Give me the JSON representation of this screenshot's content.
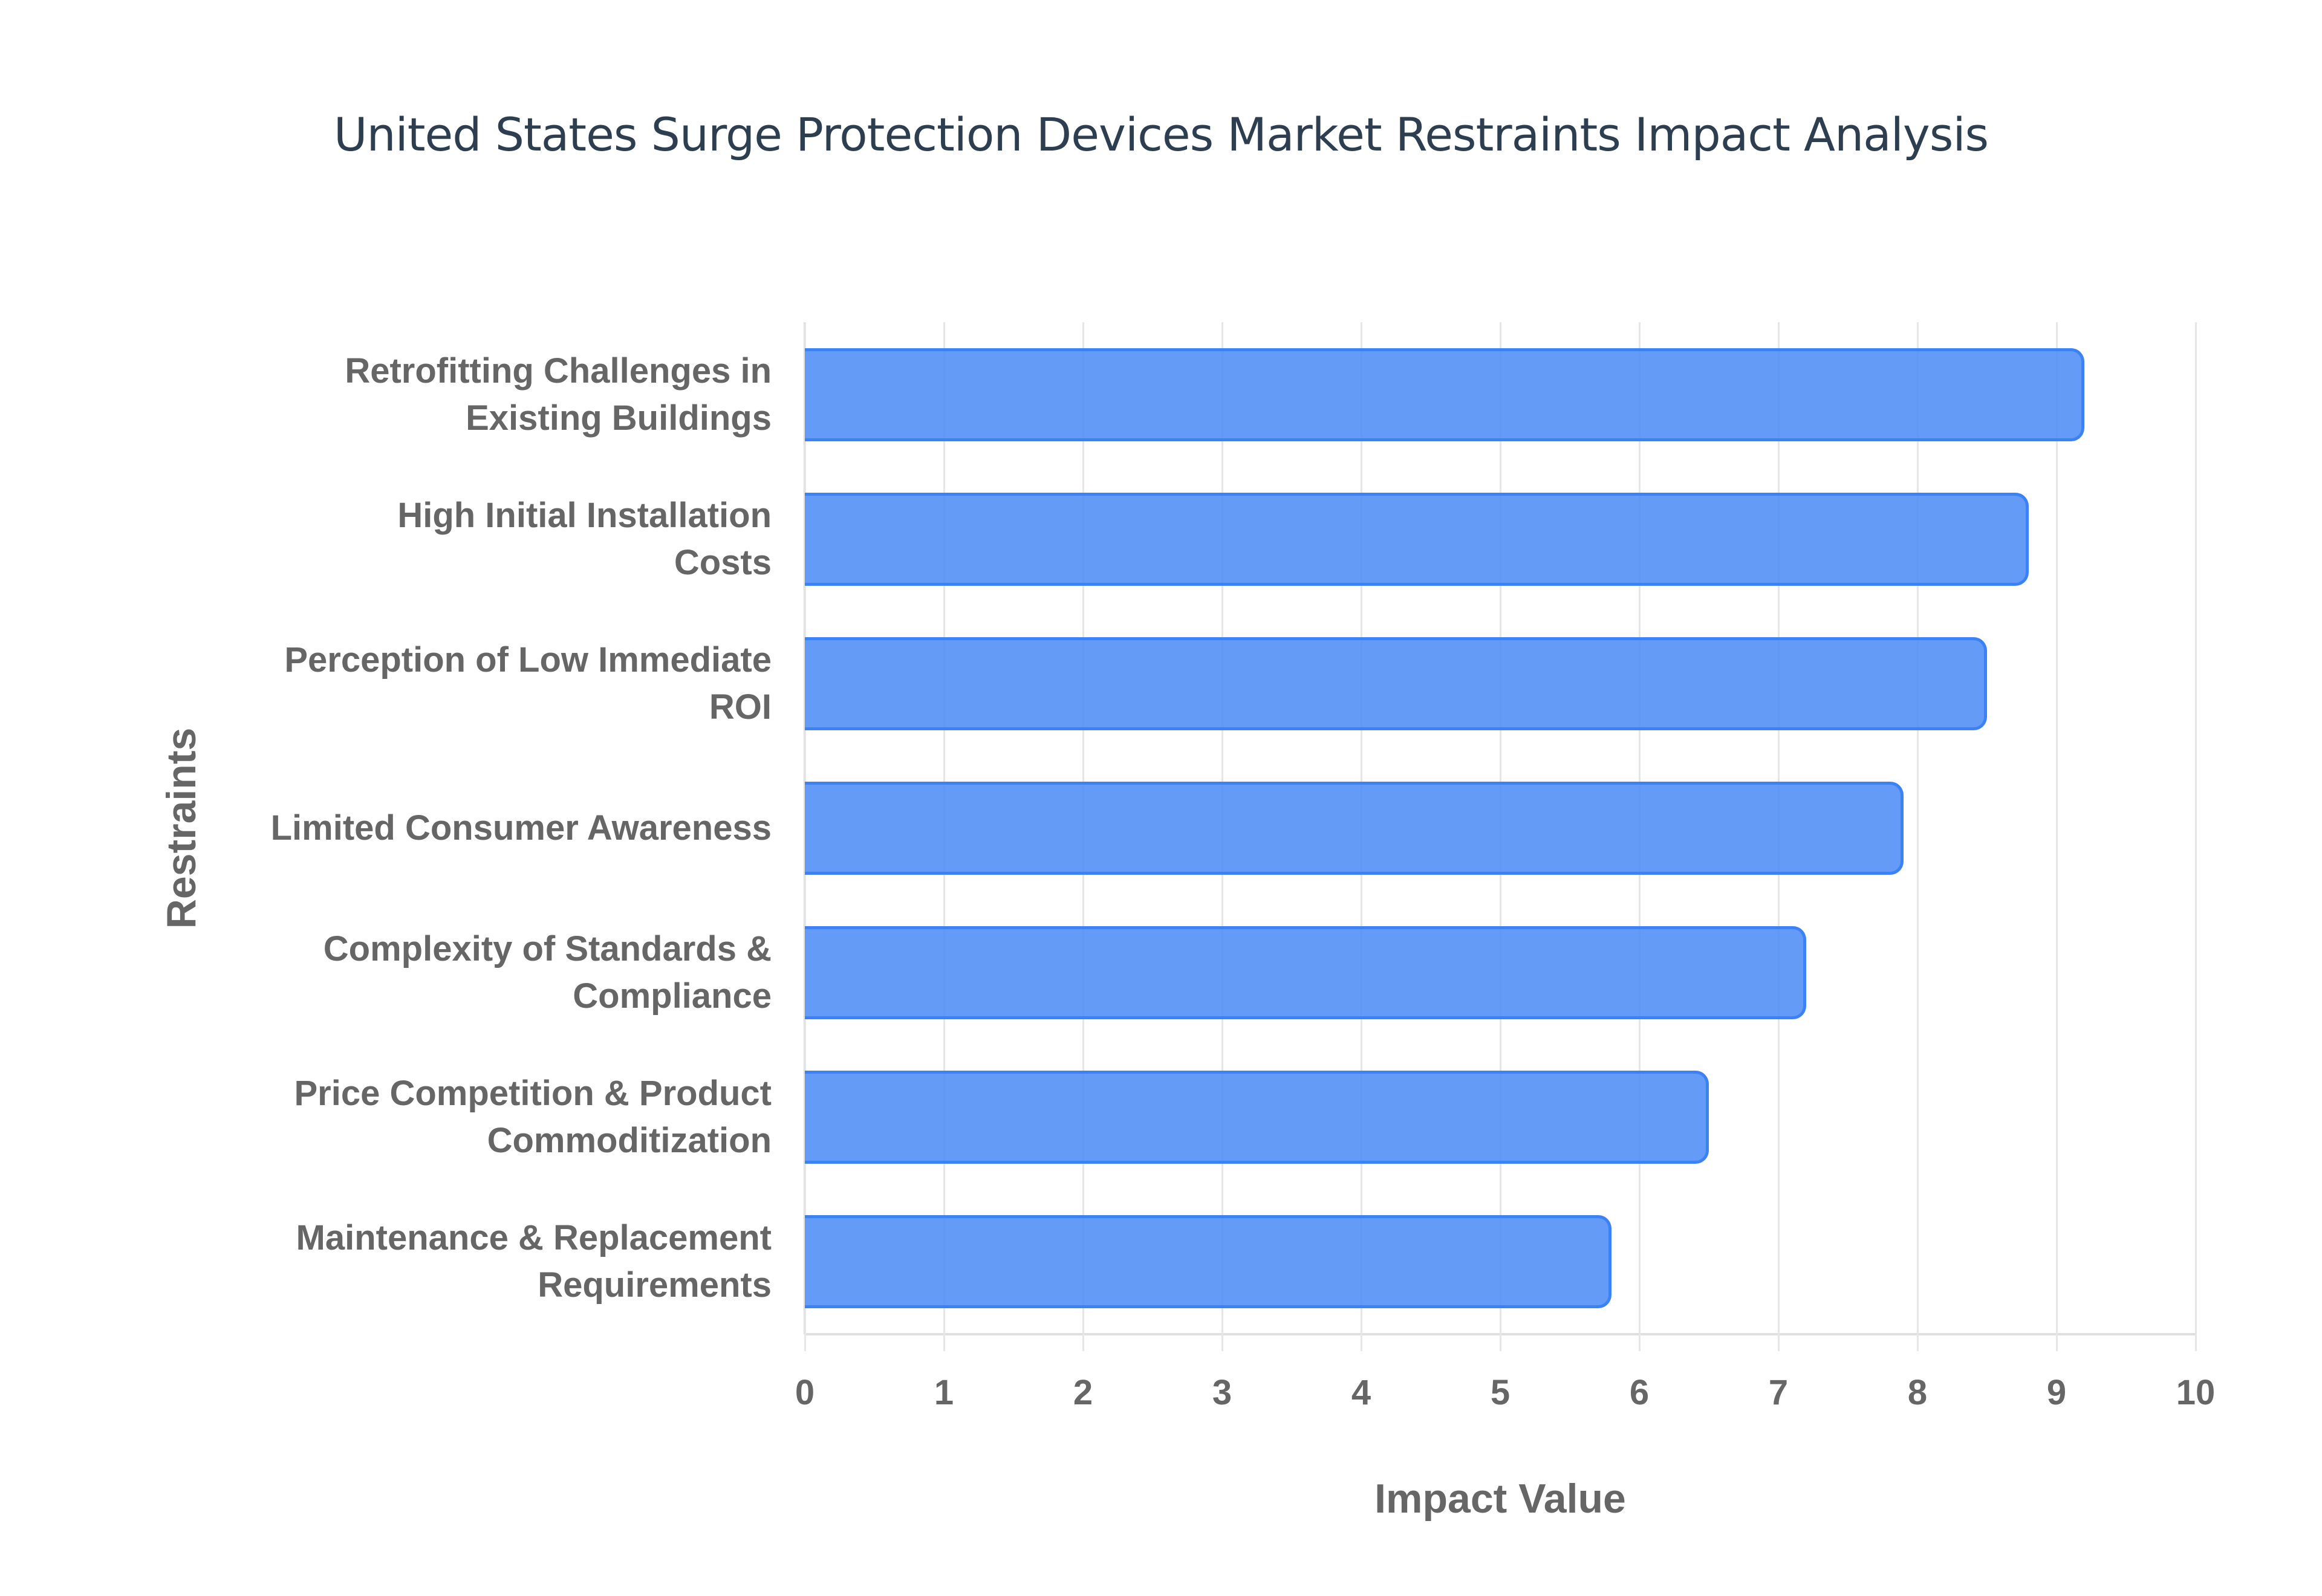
{
  "chart": {
    "title": "United States Surge Protection Devices Market Restraints Impact Analysis",
    "xlabel": "Impact Value",
    "ylabel": "Restraints",
    "bar_fill": "#4d8df5",
    "bar_border": "#3b82f6",
    "ticks": [
      "0",
      "1",
      "2",
      "3",
      "4",
      "5",
      "6",
      "7",
      "8",
      "9",
      "10"
    ],
    "categories": [
      {
        "line1": "Retrofitting Challenges in",
        "line2": "Existing Buildings"
      },
      {
        "line1": "High Initial Installation",
        "line2": "Costs"
      },
      {
        "line1": "Perception of Low Immediate",
        "line2": "ROI"
      },
      {
        "line1": "Limited Consumer Awareness",
        "line2": ""
      },
      {
        "line1": "Complexity of Standards &",
        "line2": "Compliance"
      },
      {
        "line1": "Price Competition & Product",
        "line2": "Commoditization"
      },
      {
        "line1": "Maintenance & Replacement",
        "line2": "Requirements"
      }
    ]
  },
  "chart_data": {
    "type": "bar",
    "orientation": "horizontal",
    "title": "United States Surge Protection Devices Market Restraints Impact Analysis",
    "xlabel": "Impact Value",
    "ylabel": "Restraints",
    "categories": [
      "Retrofitting Challenges in Existing Buildings",
      "High Initial Installation Costs",
      "Perception of Low Immediate ROI",
      "Limited Consumer Awareness",
      "Complexity of Standards & Compliance",
      "Price Competition & Product Commoditization",
      "Maintenance & Replacement Requirements"
    ],
    "values": [
      9.2,
      8.8,
      8.5,
      7.9,
      7.2,
      6.5,
      5.8
    ],
    "xlim": [
      0,
      10
    ],
    "xticks": [
      0,
      1,
      2,
      3,
      4,
      5,
      6,
      7,
      8,
      9,
      10
    ],
    "grid": "vertical",
    "legend": "none"
  }
}
